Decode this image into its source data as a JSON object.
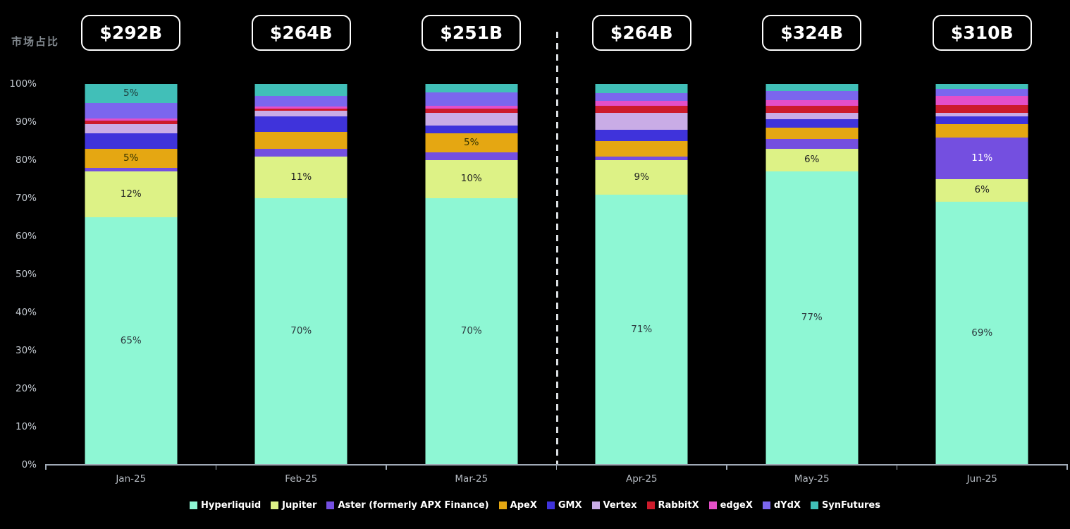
{
  "title": "市场占比",
  "chart_data": {
    "type": "bar",
    "subtype": "stacked-percent-column",
    "title": "市场占比",
    "xlabel": "",
    "ylabel": "市场占比",
    "ylim": [
      0,
      100
    ],
    "grid": false,
    "legend_position": "bottom",
    "background": "#000000",
    "categories": [
      "Jan-25",
      "Feb-25",
      "Mar-25",
      "Apr-25",
      "May-25",
      "Jun-25"
    ],
    "totals": [
      "$292B",
      "$264B",
      "$251B",
      "$264B",
      "$324B",
      "$310B"
    ],
    "y_tick_labels": [
      "0%",
      "10%",
      "20%",
      "30%",
      "40%",
      "50%",
      "60%",
      "70%",
      "80%",
      "90%",
      "100%"
    ],
    "divider_between": [
      "Mar-25",
      "Apr-25"
    ],
    "label_min_value": 5,
    "series": [
      {
        "name": "Hyperliquid",
        "color": "#8EF7D4",
        "label_color": "#2e3b40",
        "values": [
          65,
          70,
          70,
          71,
          77,
          69
        ]
      },
      {
        "name": "Jupiter",
        "color": "#DDF286",
        "label_color": "#222222",
        "values": [
          12,
          11,
          10,
          9,
          6,
          6
        ]
      },
      {
        "name": "Aster (formerly APX Finance)",
        "color": "#744FE0",
        "label_color": "#ffffff",
        "values": [
          1,
          2,
          2,
          1,
          2.5,
          11
        ]
      },
      {
        "name": "ApeX",
        "color": "#E5A712",
        "label_color": "#333300",
        "values": [
          5,
          4.5,
          5,
          4,
          3,
          3.5
        ]
      },
      {
        "name": "GMX",
        "color": "#3F33DB",
        "label_color": "#ffffff",
        "values": [
          4,
          4,
          2,
          3,
          2.2,
          2
        ]
      },
      {
        "name": "Vertex",
        "color": "#C9ACE6",
        "label_color": "#222222",
        "values": [
          2.5,
          1.5,
          3.5,
          4.4,
          1.7,
          1
        ]
      },
      {
        "name": "RabbitX",
        "color": "#CC1B2B",
        "label_color": "#ffffff",
        "values": [
          0.8,
          0.5,
          1,
          1.9,
          1.9,
          2
        ]
      },
      {
        "name": "edgeX",
        "color": "#E44FC8",
        "label_color": "#ffffff",
        "values": [
          0.7,
          0.5,
          0.7,
          1.3,
          1.4,
          2.4
        ]
      },
      {
        "name": "dYdX",
        "color": "#7B66EE",
        "label_color": "#ffffff",
        "values": [
          4,
          2.8,
          3.5,
          2.1,
          2.5,
          1.8
        ]
      },
      {
        "name": "SynFutures",
        "color": "#41BFB8",
        "label_color": "#1d3a38",
        "values": [
          5,
          3.2,
          2.3,
          2.3,
          1.8,
          1.3
        ]
      }
    ]
  }
}
